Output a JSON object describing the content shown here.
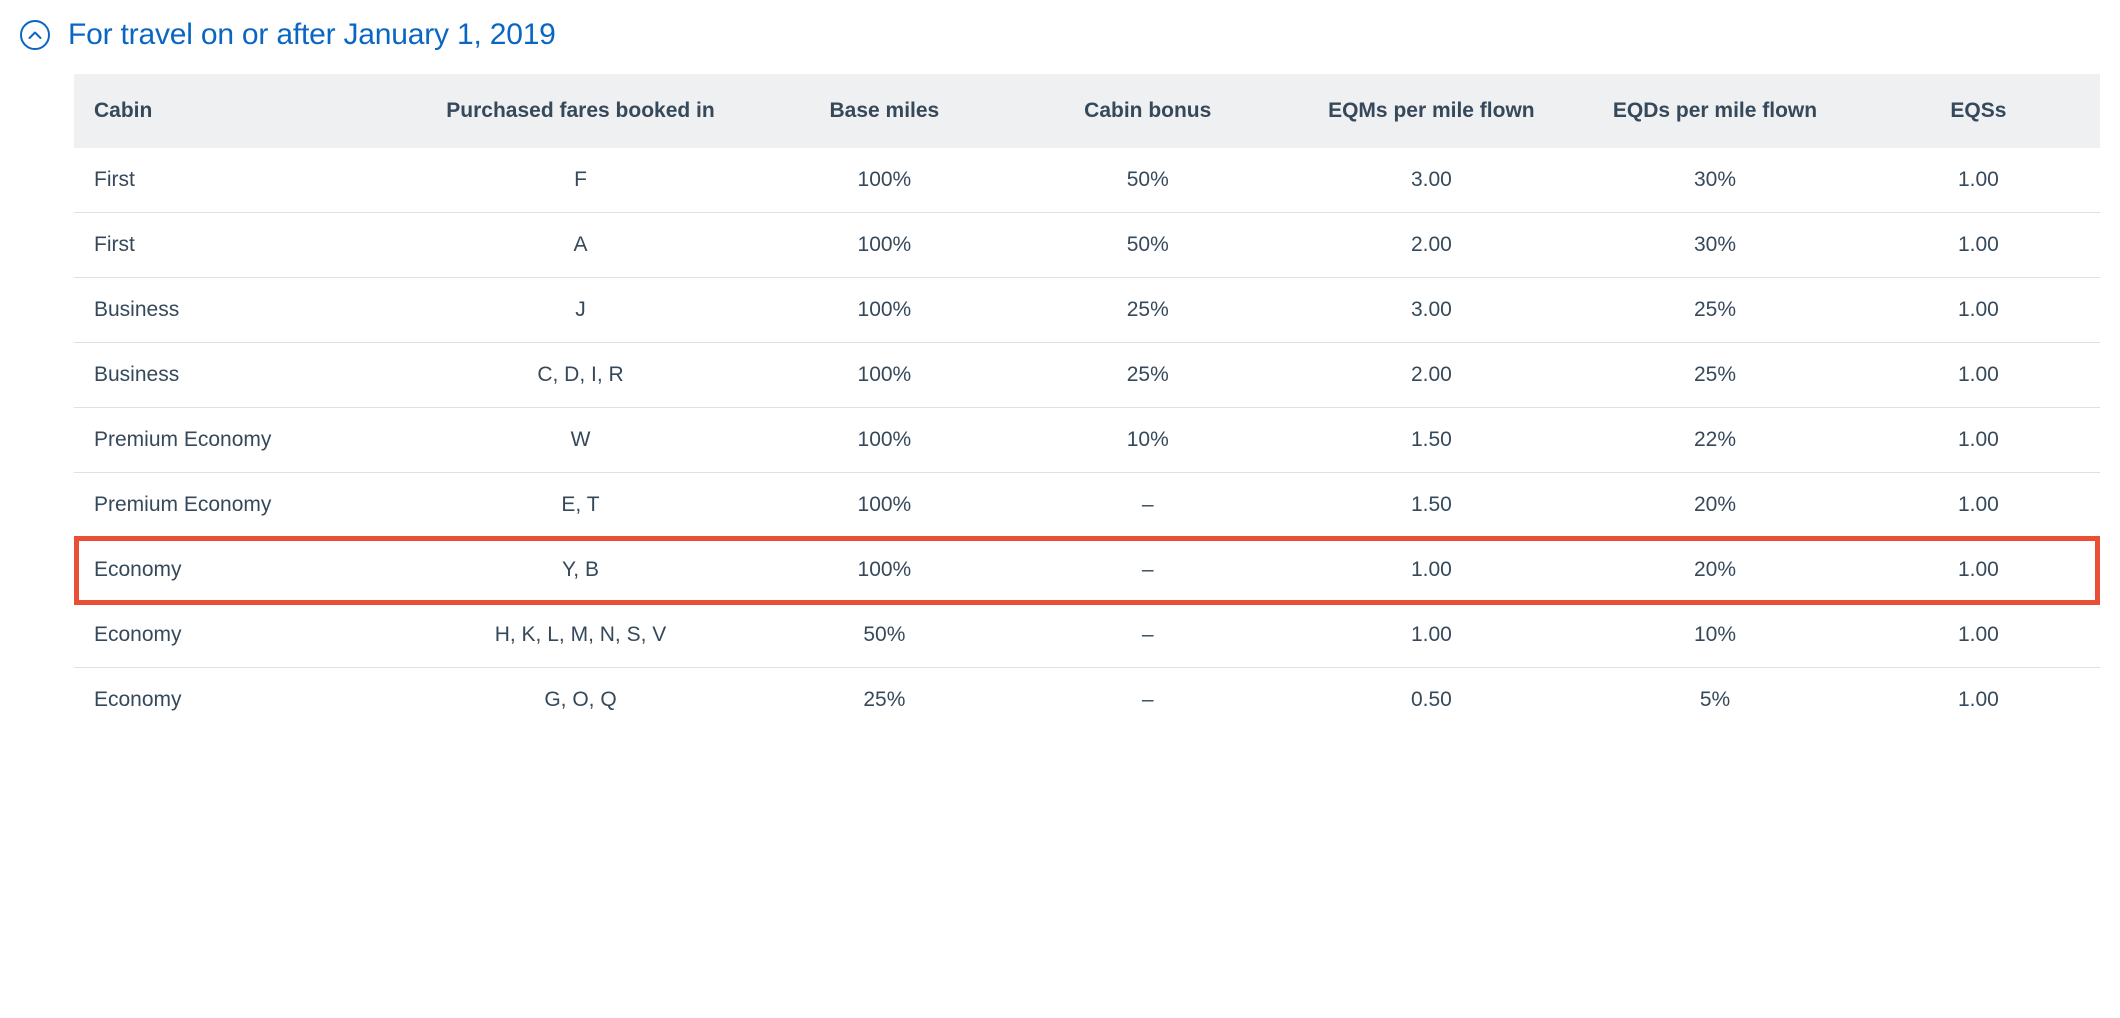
{
  "colors": {
    "link_blue": "#0a66c2",
    "text_body": "#36495a",
    "header_bg": "#eff0f2",
    "row_border": "#dde1e5",
    "highlight_border": "#e94f35",
    "background": "#ffffff"
  },
  "header": {
    "title": "For travel on or after January 1, 2019"
  },
  "table": {
    "columns": [
      "Cabin",
      "Purchased fares booked in",
      "Base miles",
      "Cabin bonus",
      "EQMs per mile flown",
      "EQDs per mile flown",
      "EQSs"
    ],
    "col_widths_pct": [
      16,
      18,
      12,
      14,
      14,
      14,
      12
    ],
    "rows": [
      [
        "First",
        "F",
        "100%",
        "50%",
        "3.00",
        "30%",
        "1.00"
      ],
      [
        "First",
        "A",
        "100%",
        "50%",
        "2.00",
        "30%",
        "1.00"
      ],
      [
        "Business",
        "J",
        "100%",
        "25%",
        "3.00",
        "25%",
        "1.00"
      ],
      [
        "Business",
        "C, D, I, R",
        "100%",
        "25%",
        "2.00",
        "25%",
        "1.00"
      ],
      [
        "Premium Economy",
        "W",
        "100%",
        "10%",
        "1.50",
        "22%",
        "1.00"
      ],
      [
        "Premium Economy",
        "E, T",
        "100%",
        "–",
        "1.50",
        "20%",
        "1.00"
      ],
      [
        "Economy",
        "Y, B",
        "100%",
        "–",
        "1.00",
        "20%",
        "1.00"
      ],
      [
        "Economy",
        "H, K, L, M, N, S, V",
        "50%",
        "–",
        "1.00",
        "10%",
        "1.00"
      ],
      [
        "Economy",
        "G, O, Q",
        "25%",
        "–",
        "0.50",
        "5%",
        "1.00"
      ]
    ],
    "highlight_row_index": 6
  }
}
